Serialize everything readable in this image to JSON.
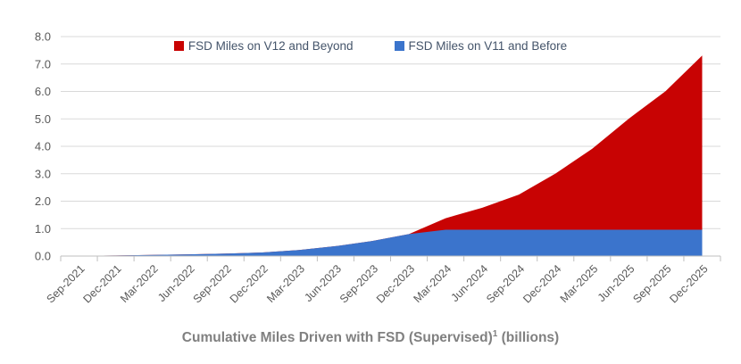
{
  "chart_data": {
    "type": "area",
    "stacked": true,
    "title": "",
    "caption": {
      "main": "Cumulative Miles Driven with FSD (Supervised)",
      "superscript": "1",
      "tail": " (billions)"
    },
    "categories": [
      "Sep-2021",
      "Dec-2021",
      "Mar-2022",
      "Jun-2022",
      "Sep-2022",
      "Dec-2022",
      "Mar-2023",
      "Jun-2023",
      "Sep-2023",
      "Dec-2023",
      "Mar-2024",
      "Jun-2024",
      "Sep-2024",
      "Dec-2024",
      "Mar-2025",
      "Jun-2025",
      "Sep-2025",
      "Dec-2025"
    ],
    "series": [
      {
        "name": "FSD Miles on V12 and Beyond",
        "color": "#C80303",
        "stack_position": "top",
        "values": [
          0,
          0,
          0,
          0,
          0,
          0,
          0,
          0,
          0,
          0,
          0.42,
          0.8,
          1.28,
          2.05,
          2.95,
          4.05,
          5.05,
          6.35
        ]
      },
      {
        "name": "FSD Miles on V11 and Before",
        "color": "#3B74CC",
        "stack_position": "bottom",
        "values": [
          0.01,
          0.02,
          0.04,
          0.06,
          0.09,
          0.13,
          0.22,
          0.36,
          0.55,
          0.8,
          0.96,
          0.96,
          0.96,
          0.96,
          0.96,
          0.96,
          0.96,
          0.96
        ]
      }
    ],
    "stacked_totals": [
      0.01,
      0.02,
      0.04,
      0.06,
      0.09,
      0.13,
      0.22,
      0.36,
      0.55,
      0.8,
      1.38,
      1.76,
      2.24,
      3.01,
      3.91,
      5.01,
      6.01,
      7.31
    ],
    "y_axis": {
      "min": 0,
      "max": 8,
      "step": 1,
      "ticks": [
        "0.0",
        "1.0",
        "2.0",
        "3.0",
        "4.0",
        "5.0",
        "6.0",
        "7.0",
        "8.0"
      ]
    },
    "x_axis": {
      "label_rotation_deg": -45
    },
    "legend_position": "top",
    "grid": true
  },
  "styles": {
    "background": "#FFFFFF",
    "gridline": "#D9D9D9",
    "axis_line": "#BFBFBF",
    "tick_label_color": "#595959",
    "legend_text_color": "#44546A",
    "caption_color": "#808080"
  }
}
